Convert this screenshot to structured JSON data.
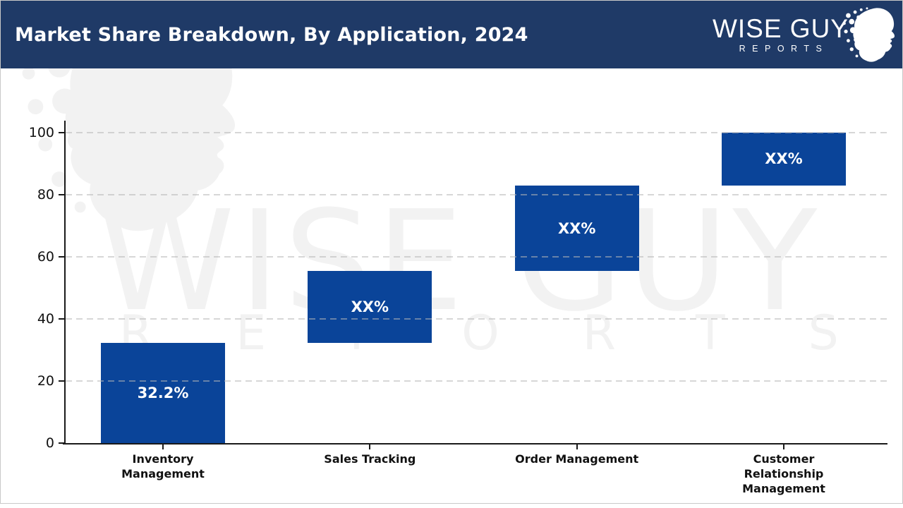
{
  "header": {
    "title": "Market Share Breakdown, By Application, 2024",
    "logo": {
      "brand_line1": "WISE GUY",
      "brand_line2": "REPORTS"
    }
  },
  "watermark": {
    "big_text": "WISE GUY",
    "spaced_text": "REPORTS"
  },
  "chart_data": {
    "type": "bar",
    "variant": "waterfall",
    "title": "Market Share Breakdown, By Application, 2024",
    "categories": [
      "Inventory Management",
      "Sales Tracking",
      "Order Management",
      "Customer Relationship Management"
    ],
    "category_lines": [
      [
        "Inventory",
        "Management"
      ],
      [
        "Sales Tracking"
      ],
      [
        "Order Management"
      ],
      [
        "Customer",
        "Relationship",
        "Management"
      ]
    ],
    "segments": [
      {
        "category": "Inventory Management",
        "label": "32.2%",
        "start": 0,
        "end": 32.2
      },
      {
        "category": "Sales Tracking",
        "label": "XX%",
        "start": 32.2,
        "end": 55.4
      },
      {
        "category": "Order Management",
        "label": "XX%",
        "start": 55.4,
        "end": 83
      },
      {
        "category": "Customer Relationship Management",
        "label": "XX%",
        "start": 83,
        "end": 100
      }
    ],
    "yticks": [
      0,
      20,
      40,
      60,
      80,
      100
    ],
    "ylim": [
      0,
      104
    ],
    "xlabel": "",
    "ylabel": "",
    "grid": "horizontal-dashed",
    "legend": "none",
    "bar_color": "#0a4499",
    "bar_label_color": "#ffffff"
  },
  "colors": {
    "header_bg": "#1f3a67",
    "bar": "#0a4499",
    "bar_label": "#ffffff",
    "axis": "#1a1a1a",
    "watermark": "#f2f2f2",
    "frame_border": "#c9c9c9"
  }
}
